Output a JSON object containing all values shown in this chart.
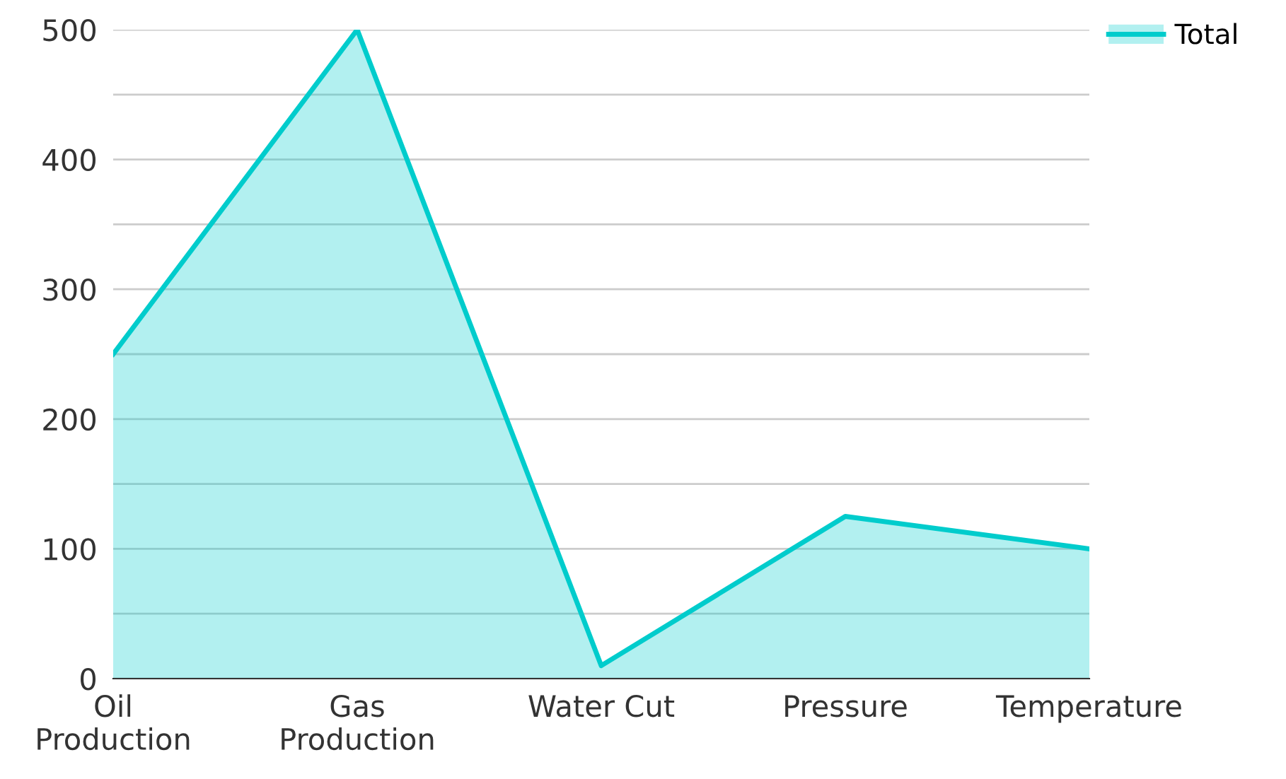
{
  "chart_data": {
    "type": "area",
    "categories": [
      "Oil\nProduction",
      "Gas\nProduction",
      "Water Cut",
      "Pressure",
      "Temperature"
    ],
    "series": [
      {
        "name": "Total",
        "color": "#00cccc",
        "values": [
          250,
          500,
          10,
          125,
          100
        ]
      }
    ],
    "ylim": [
      0,
      500
    ],
    "yticks": [
      0,
      {
        "value": 50,
        "label": null
      },
      100,
      {
        "value": 150,
        "label": null
      },
      200,
      {
        "value": 250,
        "label": null
      },
      300,
      {
        "value": 350,
        "label": null
      },
      400,
      {
        "value": 450,
        "label": null
      },
      500
    ],
    "grid": "y",
    "legend": "top right",
    "marker": "none",
    "line_style": "solid"
  }
}
